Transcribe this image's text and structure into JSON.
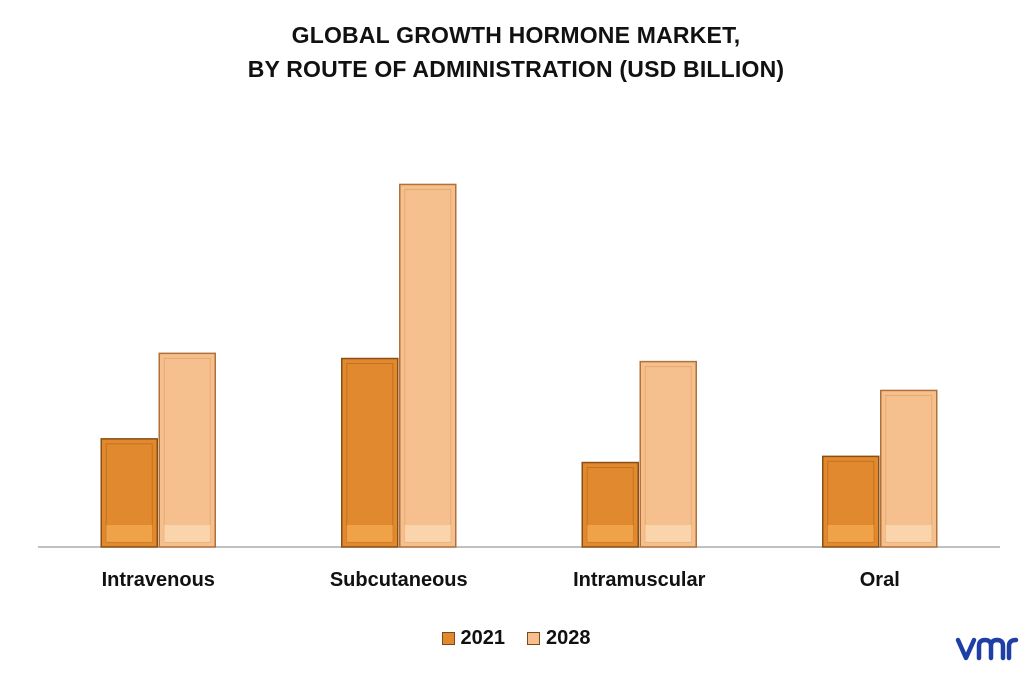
{
  "title_lines": [
    "GLOBAL GROWTH HORMONE MARKET,",
    "BY ROUTE OF ADMINISTRATION (USD BILLION)"
  ],
  "logo_text": "vmr",
  "chart_data": {
    "type": "bar",
    "categories": [
      "Intravenous",
      "Subcutaneous",
      "Intramuscular",
      "Oral"
    ],
    "series": [
      {
        "name": "2021",
        "values": [
          1.05,
          1.83,
          0.82,
          0.88
        ],
        "color": "#e0892e"
      },
      {
        "name": "2028",
        "values": [
          1.88,
          3.52,
          1.8,
          1.52
        ],
        "color": "#f5c08e"
      }
    ],
    "ylim": [
      0,
      4.0
    ],
    "grid": false,
    "legend_position": "bottom",
    "title": "GLOBAL GROWTH HORMONE MARKET, BY ROUTE OF ADMINISTRATION (USD BILLION)",
    "xlabel": "",
    "ylabel": ""
  }
}
